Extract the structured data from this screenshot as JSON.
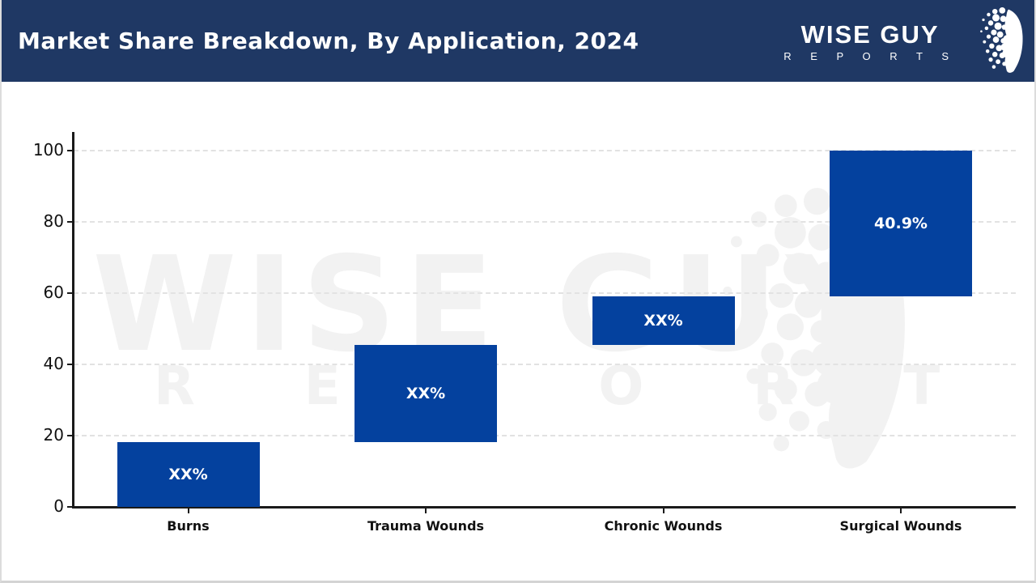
{
  "header": {
    "bg_color": "#1f3864",
    "logo": {
      "line1": "WISE GUY",
      "line2": "R E P O R T S"
    }
  },
  "watermark": {
    "line1": "WISE GUY",
    "line2": "R E P O R T S"
  },
  "chart_data": {
    "type": "bar",
    "subtype": "waterfall",
    "title": "Market Share Breakdown, By Application, 2024",
    "categories": [
      "Burns",
      "Trauma Wounds",
      "Chronic Wounds",
      "Surgical Wounds"
    ],
    "segments": [
      {
        "category": "Burns",
        "start": 0,
        "end": 18.2,
        "label": "XX%"
      },
      {
        "category": "Trauma Wounds",
        "start": 18.2,
        "end": 45.5,
        "label": "XX%"
      },
      {
        "category": "Chronic Wounds",
        "start": 45.5,
        "end": 59.1,
        "label": "XX%"
      },
      {
        "category": "Surgical Wounds",
        "start": 59.1,
        "end": 100,
        "label": "40.9%"
      }
    ],
    "yticks": [
      0,
      20,
      40,
      60,
      80,
      100
    ],
    "ylim": [
      0,
      105
    ],
    "xlabel": "",
    "ylabel": "",
    "bar_color": "#04419e",
    "grid": "horizontal-dashed",
    "gridline_color": "#e2e2e2",
    "legend": "none"
  }
}
